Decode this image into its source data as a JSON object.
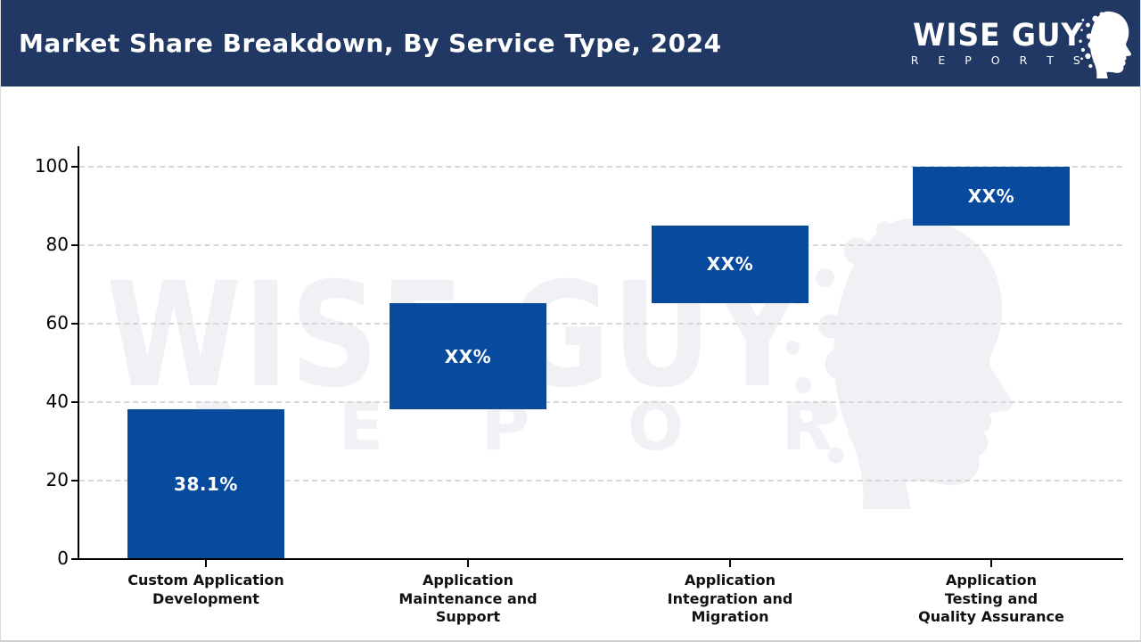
{
  "header": {
    "title": "Market Share Breakdown, By Service Type, 2024",
    "bg_color": "#213864",
    "logo": {
      "name": "WISE GUY",
      "sub": "R E P O R T S"
    }
  },
  "watermark": {
    "line1": "WISE GUY",
    "line2": "R E P O R T S",
    "color": "#f0f1f4"
  },
  "chart_data": {
    "type": "bar",
    "subtype": "waterfall",
    "title": "Market Share Breakdown, By Service Type, 2024",
    "xlabel": "",
    "ylabel": "",
    "ylim": [
      0,
      105
    ],
    "yticks": [
      0,
      20,
      40,
      60,
      80,
      100
    ],
    "grid": "horizontal dashed",
    "legend": "none",
    "categories": [
      "Custom Application\nDevelopment",
      "Application\nMaintenance and\nSupport",
      "Application\nIntegration and\nMigration",
      "Application\nTesting and\nQuality Assurance"
    ],
    "segments": [
      {
        "label": "38.1%",
        "start": 0,
        "end": 38.1
      },
      {
        "label": "XX%",
        "start": 38.1,
        "end": 65.3
      },
      {
        "label": "XX%",
        "start": 65.3,
        "end": 85.1
      },
      {
        "label": "XX%",
        "start": 85.1,
        "end": 100.0
      }
    ],
    "bar_color": "#084a9e",
    "bar_label_color": "#ffffff",
    "grid_color": "#d7d7d7",
    "axis_color": "#000000"
  }
}
